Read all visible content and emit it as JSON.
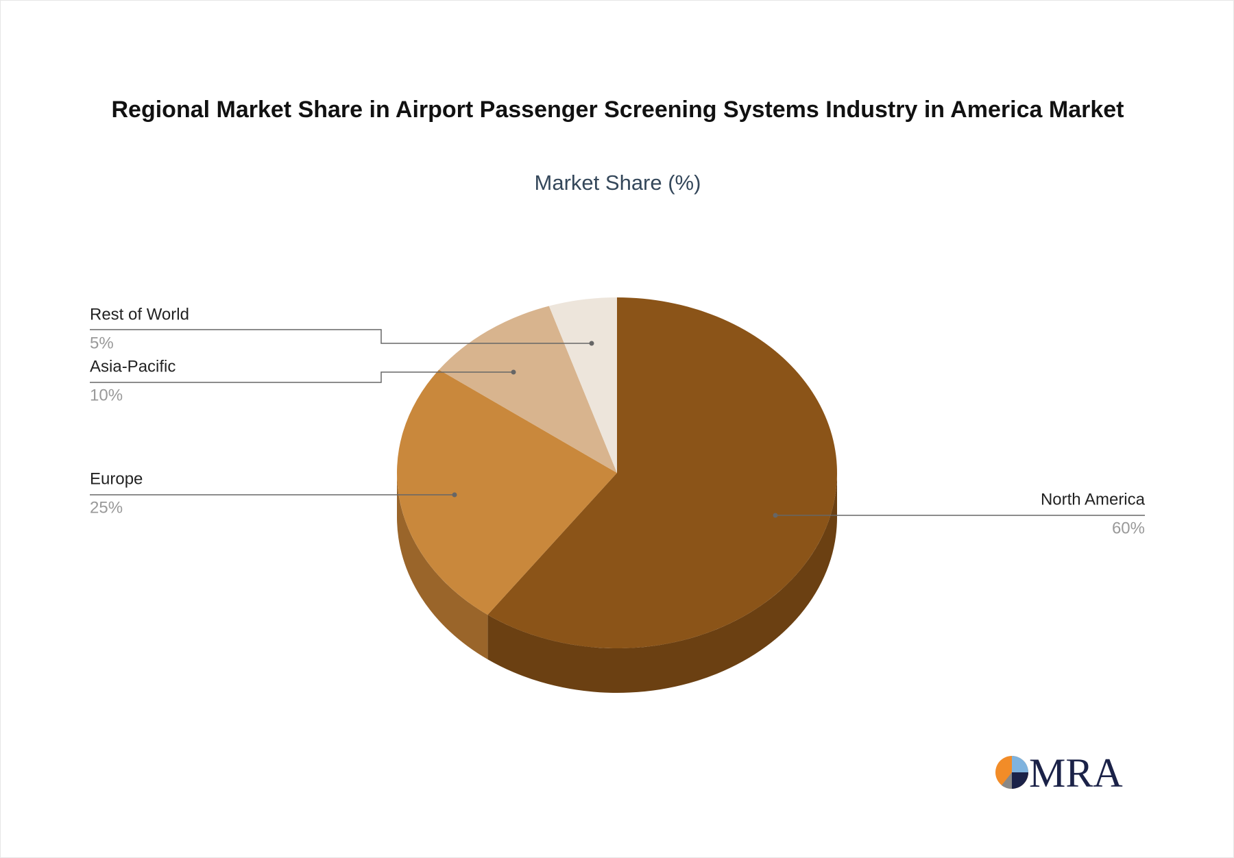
{
  "chart_data": {
    "type": "pie",
    "title": "Regional Market Share in Airport Passenger Screening Systems Industry in America Market",
    "subtitle": "Market Share (%)",
    "categories": [
      "North America",
      "Europe",
      "Asia-Pacific",
      "Rest of World"
    ],
    "values": [
      60,
      25,
      10,
      5
    ],
    "value_labels": [
      "60%",
      "25%",
      "10%",
      "5%"
    ],
    "colors": [
      "#8b5418",
      "#c9883c",
      "#d8b48e",
      "#ede5db"
    ],
    "side_colors": [
      "#6b4012",
      "#9a652a",
      "#a88764",
      "#bdb3a8"
    ]
  },
  "logo": "MRA"
}
